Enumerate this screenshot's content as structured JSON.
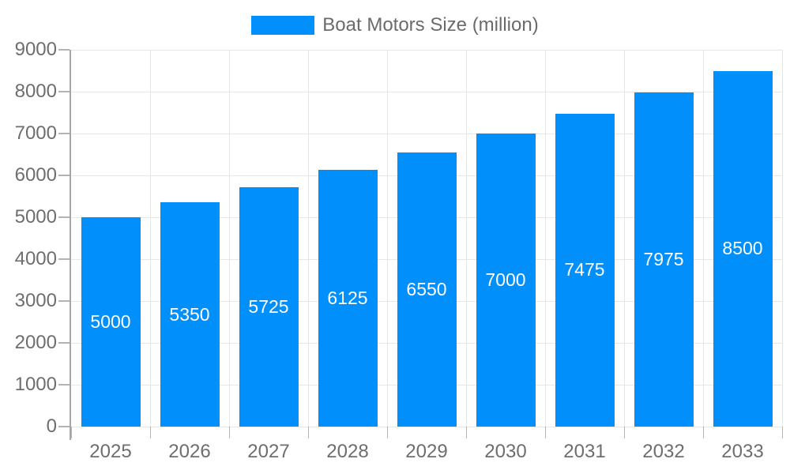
{
  "legend": {
    "label": "Boat Motors Size (million)",
    "position": "top"
  },
  "chart_data": {
    "type": "bar",
    "title": "",
    "categories": [
      "2025",
      "2026",
      "2027",
      "2028",
      "2029",
      "2030",
      "2031",
      "2032",
      "2033"
    ],
    "series": [
      {
        "name": "Boat Motors Size (million)",
        "values": [
          5000,
          5350,
          5725,
          6125,
          6550,
          7000,
          7475,
          7975,
          8500
        ]
      }
    ],
    "data_labels_shown": true,
    "xlabel": "",
    "ylabel": "",
    "ylim": [
      0,
      9000
    ],
    "ytick_interval": 1000,
    "yticks": [
      0,
      1000,
      2000,
      3000,
      4000,
      5000,
      6000,
      7000,
      8000,
      9000
    ],
    "grid": true,
    "legend_position": "top",
    "colors": {
      "bar": "#008FFB",
      "bar_label_text": "#ffffff",
      "axis_text": "#6e6e6e",
      "legend_text": "#6b6b6b",
      "gridline": "#e7e7e7",
      "axis_line": "#a6a6a6",
      "tick": "#b3b3b3",
      "background": "#ffffff"
    }
  }
}
